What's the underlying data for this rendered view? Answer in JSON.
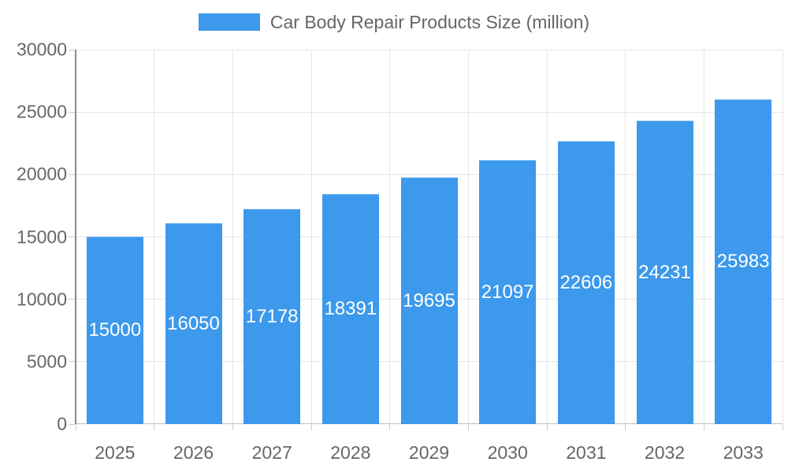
{
  "legend": {
    "label": "Car Body Repair Products Size (million)"
  },
  "chart_data": {
    "type": "bar",
    "title": "Car Body Repair Products Size (million)",
    "categories": [
      "2025",
      "2026",
      "2027",
      "2028",
      "2029",
      "2030",
      "2031",
      "2032",
      "2033"
    ],
    "values": [
      15000,
      16050,
      17178,
      18391,
      19695,
      21097,
      22606,
      24231,
      25983
    ],
    "xlabel": "",
    "ylabel": "",
    "ylim": [
      0,
      30000
    ],
    "yticks": [
      0,
      5000,
      10000,
      15000,
      20000,
      25000,
      30000
    ],
    "grid": true,
    "legend_position": "top",
    "bar_labels_inside": true,
    "colors": {
      "bar": "#3C99EC",
      "bar_border": "#7cbcf3",
      "bar_label": "#ffffff",
      "axis_text": "#666666",
      "grid_line": "#e6e6e6",
      "tick_mark": "#cccccc",
      "y_axis_line": "#8a8a8a",
      "baseline": "#bfbfbf"
    }
  }
}
